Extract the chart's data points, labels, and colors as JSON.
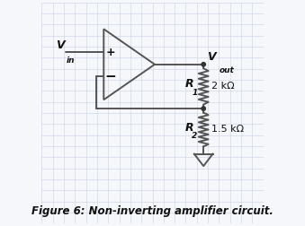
{
  "title": "Figure 6: Non-inverting amplifier circuit.",
  "title_fontsize": 8.5,
  "bg_color": "#f5f7fa",
  "grid_color": "#d0d8e8",
  "line_color": "#555555",
  "line_width": 1.4,
  "dot_color": "#333333",
  "label_color": "#111111",
  "vin_label": "V",
  "vin_sub": "in",
  "vout_label": "V",
  "vout_sub": "out",
  "r1_label": "R",
  "r1_sub": "1",
  "r1_val": "2 kΩ",
  "r2_label": "R",
  "r2_sub": "2",
  "r2_val": "1.5 kΩ",
  "plus_label": "+",
  "minus_label": "−",
  "xlim": [
    0,
    10
  ],
  "ylim": [
    0,
    10
  ]
}
